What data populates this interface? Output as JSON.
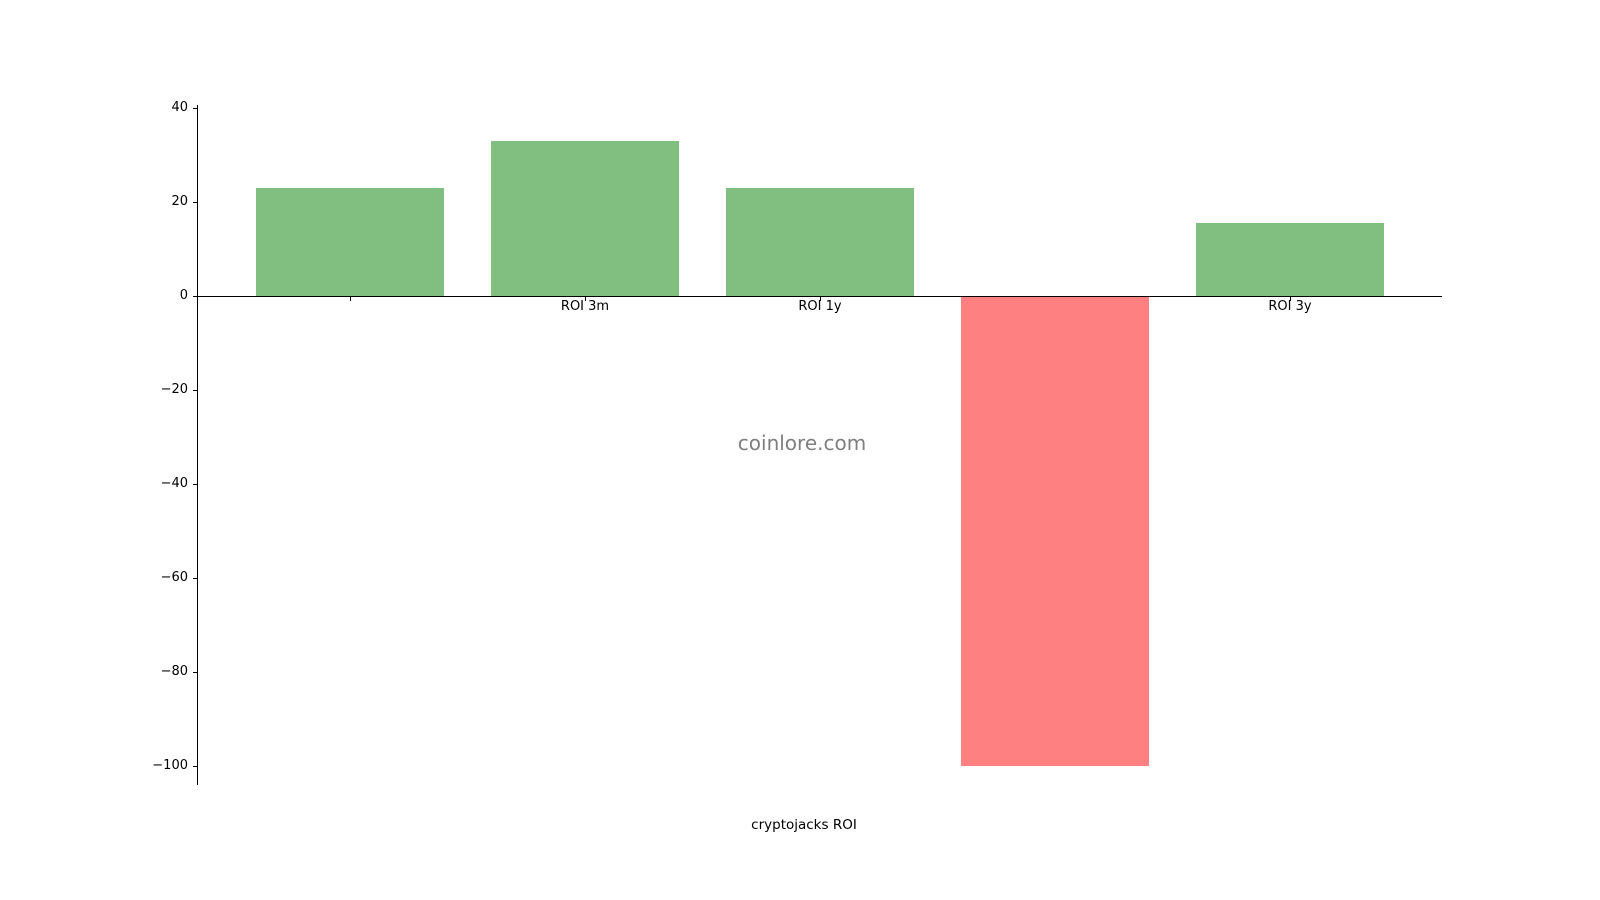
{
  "chart_data": {
    "type": "bar",
    "title": "cryptojacks ROI",
    "watermark": "coinlore.com",
    "categories": [
      "",
      "ROI 3m",
      "ROI 1y",
      "",
      "ROI 3y"
    ],
    "values": [
      23,
      33,
      23,
      -100,
      15.5
    ],
    "bar_colors": [
      "#80bf80",
      "#80bf80",
      "#80bf80",
      "#ff8080",
      "#80bf80"
    ],
    "yticks": [
      40,
      20,
      0,
      -20,
      -40,
      -60,
      -80,
      -100
    ],
    "ytick_labels": [
      "40",
      "20",
      "0",
      "−20",
      "−40",
      "−60",
      "−80",
      "−100"
    ],
    "ylim": [
      -104,
      40.6
    ],
    "xlabel": "",
    "ylabel": "",
    "grid": false,
    "legend": null,
    "colors": {
      "positive_bar": "#80bf80",
      "negative_bar": "#ff8080",
      "axis": "#000000",
      "watermark_text": "#7f7f7f",
      "background": "#ffffff"
    }
  }
}
